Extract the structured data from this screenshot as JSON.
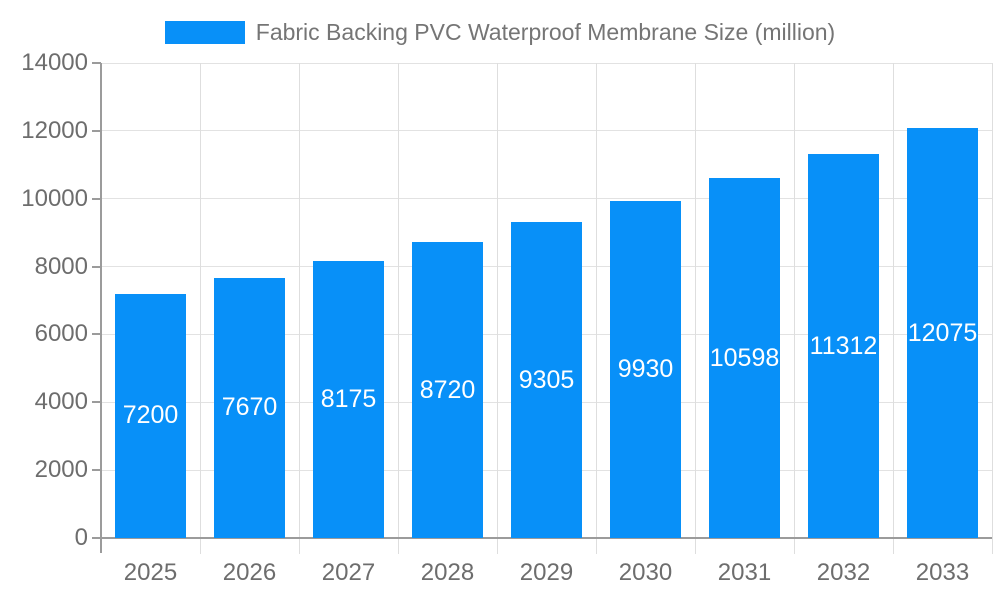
{
  "chart_data": {
    "type": "bar",
    "title": "Fabric Backing PVC Waterproof Membrane Size (million)",
    "categories": [
      "2025",
      "2026",
      "2027",
      "2028",
      "2029",
      "2030",
      "2031",
      "2032",
      "2033"
    ],
    "values": [
      7200,
      7670,
      8175,
      8720,
      9305,
      9930,
      10598,
      11312,
      12075
    ],
    "xlabel": "",
    "ylabel": "",
    "ylim": [
      0,
      14000
    ],
    "ytick_interval": 2000,
    "yticks": [
      0,
      2000,
      4000,
      6000,
      8000,
      10000,
      12000,
      14000
    ],
    "grid": true,
    "legend_position": "top",
    "bar_value_labels": "inside-centered",
    "colors": {
      "bar": "#0890f8",
      "bar_label": "#ffffff",
      "axis_text": "#6d6d6d",
      "legend_text": "#757575",
      "grid_line": "#e2e2e2",
      "axis_line": "#9b9b9b",
      "background": "#ffffff"
    }
  }
}
